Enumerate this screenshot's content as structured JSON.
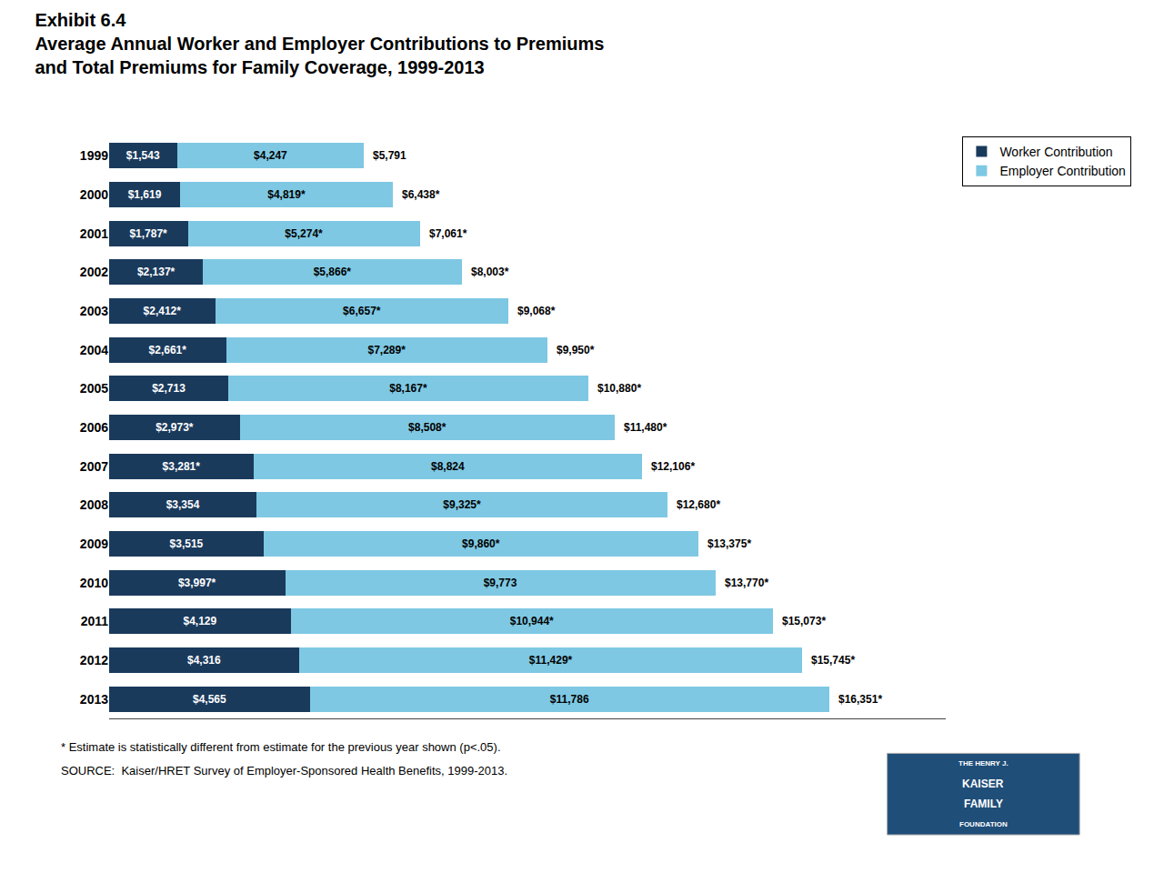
{
  "chart_data": {
    "type": "bar",
    "orientation": "horizontal",
    "stacked": true,
    "title": "Exhibit 6.4",
    "subtitle": [
      "Average Annual Worker and Employer Contributions to Premiums",
      "and Total Premiums for Family Coverage, 1999-2013"
    ],
    "categories": [
      "1999",
      "2000",
      "2001",
      "2002",
      "2003",
      "2004",
      "2005",
      "2006",
      "2007",
      "2008",
      "2009",
      "2010",
      "2011",
      "2012",
      "2013"
    ],
    "series": [
      {
        "name": "Worker Contribution",
        "color": "#1a3a5c",
        "values": [
          1543,
          1619,
          1787,
          2137,
          2412,
          2661,
          2713,
          2973,
          3281,
          3354,
          3515,
          3997,
          4129,
          4316,
          4565
        ],
        "value_labels": [
          "$1,543",
          "$1,619",
          "$1,787*",
          "$2,137*",
          "$2,412*",
          "$2,661*",
          "$2,713",
          "$2,973*",
          "$3,281*",
          "$3,354",
          "$3,515",
          "$3,997*",
          "$4,129",
          "$4,316",
          "$4,565"
        ]
      },
      {
        "name": "Employer Contribution",
        "color": "#7ec8e3",
        "values": [
          4247,
          4819,
          5274,
          5866,
          6657,
          7289,
          8167,
          8508,
          8824,
          9325,
          9860,
          9773,
          10944,
          11429,
          11786
        ],
        "value_labels": [
          "$4,247",
          "$4,819*",
          "$5,274*",
          "$5,866*",
          "$6,657*",
          "$7,289*",
          "$8,167*",
          "$8,508*",
          "$8,824",
          "$9,325*",
          "$9,860*",
          "$9,773",
          "$10,944*",
          "$11,429*",
          "$11,786"
        ]
      }
    ],
    "totals": {
      "values": [
        5791,
        6438,
        7061,
        8003,
        9068,
        9950,
        10880,
        11480,
        12106,
        12680,
        13375,
        13770,
        15073,
        15745,
        16351
      ],
      "value_labels": [
        "$5,791",
        "$6,438*",
        "$7,061*",
        "$8,003*",
        "$9,068*",
        "$9,950*",
        "$10,880*",
        "$11,480*",
        "$12,106*",
        "$12,680*",
        "$13,375*",
        "$13,770*",
        "$15,073*",
        "$15,745*",
        "$16,351*"
      ]
    },
    "xlim": [
      0,
      19000
    ],
    "data_labels": true,
    "tick_labels": "y",
    "grid": false,
    "legend": "upper right",
    "annotations": [
      "* Estimate is statistically different from estimate for the previous year shown (p<.05).",
      "SOURCE:  Kaiser/HRET Survey of Employer-Sponsored Health Benefits, 1999-2013."
    ],
    "logo": [
      "THE HENRY J.",
      "KAISER",
      "FAMILY",
      "FOUNDATION"
    ]
  }
}
